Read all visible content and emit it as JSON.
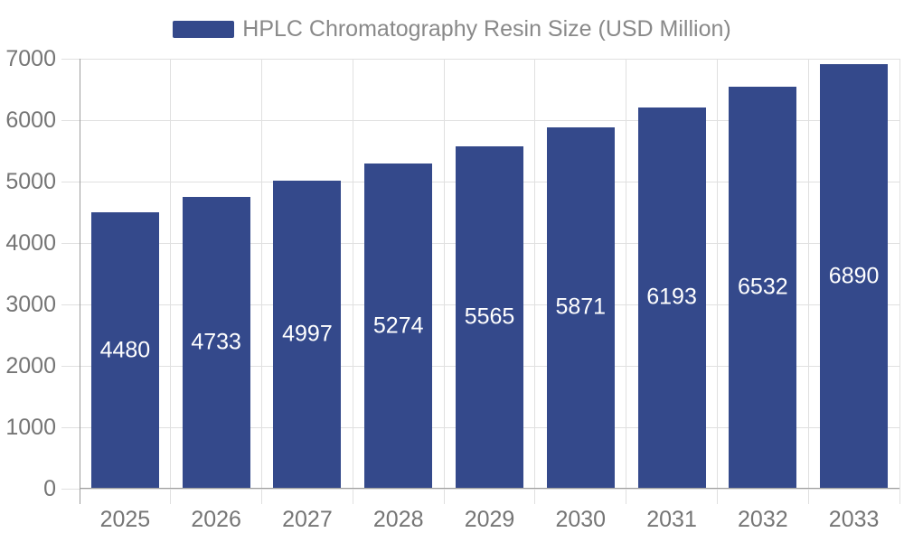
{
  "chart_data": {
    "type": "bar",
    "title": "HPLC Chromatography Resin Size (USD Million)",
    "categories": [
      "2025",
      "2026",
      "2027",
      "2028",
      "2029",
      "2030",
      "2031",
      "2032",
      "2033"
    ],
    "values": [
      4480,
      4733,
      4997,
      5274,
      5565,
      5871,
      6193,
      6532,
      6890
    ],
    "xlabel": "",
    "ylabel": "",
    "ylim": [
      0,
      7000
    ],
    "ytick_interval": 1000,
    "ytick_labels": [
      "0",
      "1000",
      "2000",
      "3000",
      "4000",
      "5000",
      "6000",
      "7000"
    ],
    "grid": true,
    "legend_position": "top-center",
    "value_label_position": "inside-center",
    "colors": {
      "bar": "#34498B",
      "value_label": "#FFFFFF",
      "axis_label": "#757575",
      "title": "#898989",
      "grid_line": "#E0E0E0",
      "axis_line": "#9E9E9E",
      "background": "#FFFFFF"
    }
  }
}
